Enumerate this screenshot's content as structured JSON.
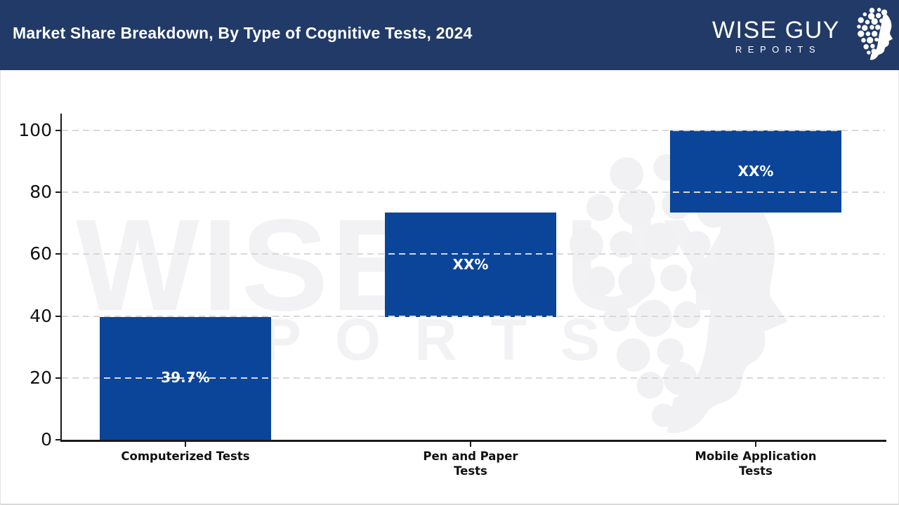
{
  "header": {
    "title": "Market Share Breakdown, By Type of Cognitive Tests, 2024",
    "logo": {
      "line1": "WISE GUY",
      "line2": "REPORTS"
    }
  },
  "watermark": {
    "line1": "WISE GUY",
    "line2": "REPORTS"
  },
  "chart_data": {
    "type": "bar",
    "subtype": "waterfall",
    "title": "Market Share Breakdown, By Type of Cognitive Tests, 2024",
    "categories": [
      [
        "Computerized Tests"
      ],
      [
        "Pen and Paper",
        "Tests"
      ],
      [
        "Mobile Application",
        "Tests"
      ]
    ],
    "segments": [
      {
        "category": "Computerized Tests",
        "start": 0,
        "end": 39.7,
        "label": "39.7%"
      },
      {
        "category": "Pen and Paper Tests",
        "start": 39.7,
        "end": 73.4,
        "label": "XX%"
      },
      {
        "category": "Mobile Application Tests",
        "start": 73.4,
        "end": 100,
        "label": "XX%"
      }
    ],
    "yticks": [
      0,
      20,
      40,
      60,
      80,
      100
    ],
    "ylim": [
      0,
      100
    ],
    "xlabel": "",
    "ylabel": "",
    "grid": "horizontal-dashed",
    "legend": "none",
    "bar_color": "#0b4599",
    "label_color": "#ffffff",
    "axis_color": "#1a1a1a",
    "grid_color": "#d8d8d8"
  },
  "colors": {
    "header_bg": "#213a67",
    "header_text": "#ffffff",
    "watermark": "#f2f2f4"
  }
}
